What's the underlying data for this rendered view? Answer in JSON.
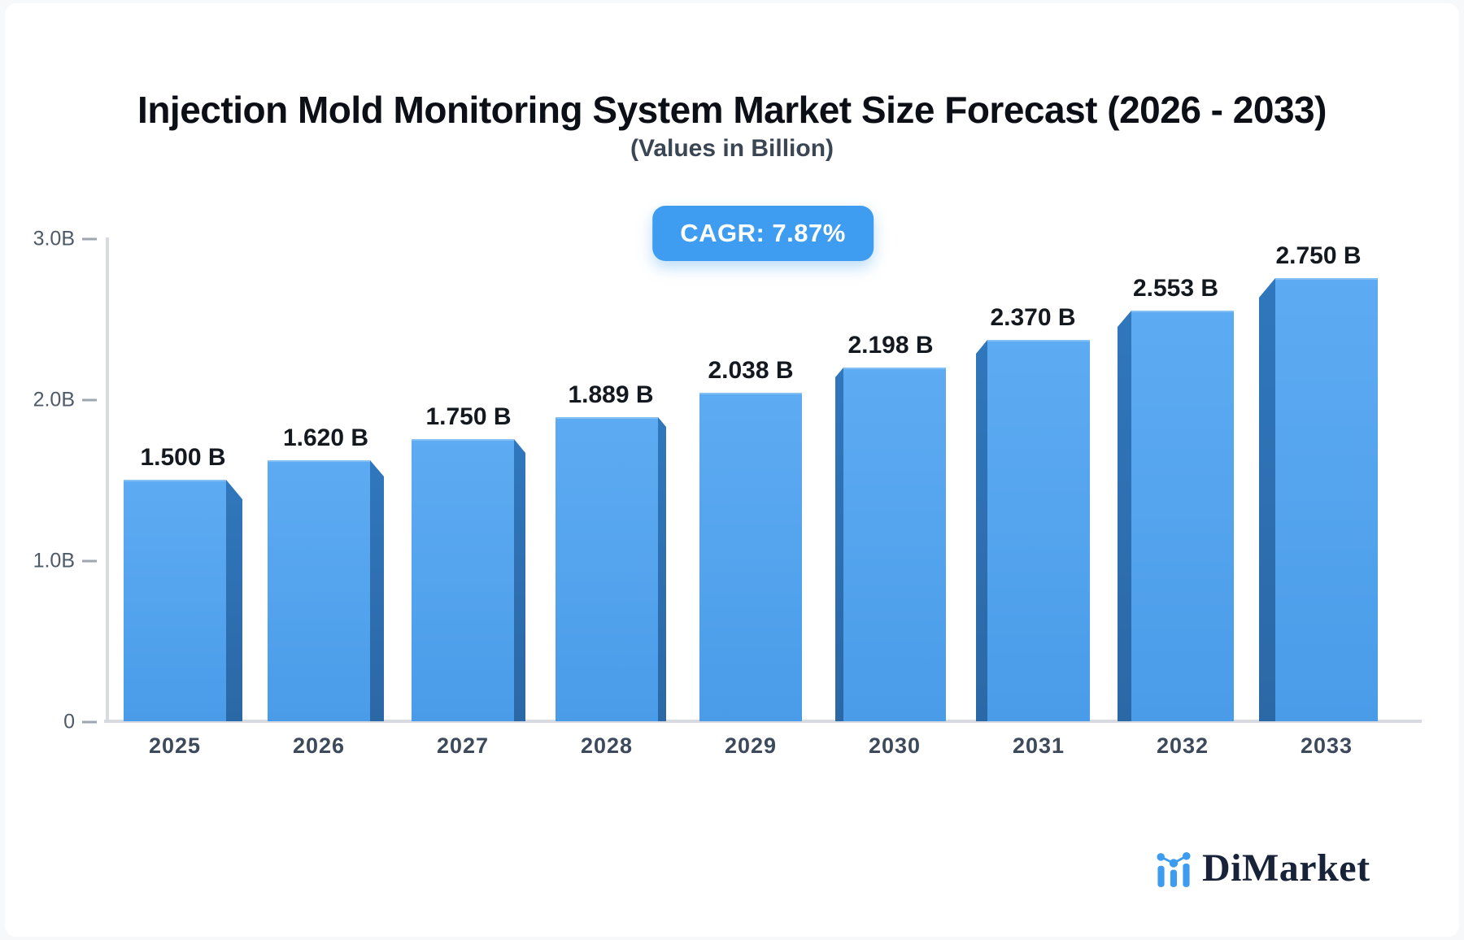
{
  "title": "Injection Mold Monitoring System Market Size Forecast (2026 - 2033)",
  "subtitle": "(Values in Billion)",
  "cagr_badge": "CAGR: 7.87%",
  "logo": {
    "text": "DiMarket",
    "icon": "mini-bar-chart-icon"
  },
  "colors": {
    "bar_face": "#4f9fea",
    "bar_side": "#2e70b4",
    "badge_bg": "#3f9df1",
    "axis_line": "#d7dade",
    "title_text": "#0c1016",
    "subtitle_text": "#3b4654",
    "logo_blue": "#3d9bf0",
    "logo_navy": "#182339"
  },
  "chart_data": {
    "type": "bar",
    "title": "Injection Mold Monitoring System Market Size Forecast (2026 - 2033)",
    "subtitle": "(Values in Billion)",
    "xlabel": "",
    "ylabel": "",
    "categories": [
      "2025",
      "2026",
      "2027",
      "2028",
      "2029",
      "2030",
      "2031",
      "2032",
      "2033"
    ],
    "values": [
      1.5,
      1.62,
      1.75,
      1.889,
      2.038,
      2.198,
      2.37,
      2.553,
      2.75
    ],
    "value_labels": [
      "1.500 B",
      "1.620 B",
      "1.750 B",
      "1.889 B",
      "2.038 B",
      "2.198 B",
      "2.370 B",
      "2.553 B",
      "2.750 B"
    ],
    "ylim": [
      0,
      3.0
    ],
    "y_ticks": [
      {
        "label": "0",
        "value": 0
      },
      {
        "label": "1.0B",
        "value": 1.0
      },
      {
        "label": "2.0B",
        "value": 2.0
      },
      {
        "label": "3.0B",
        "value": 3.0
      }
    ],
    "grid": false,
    "legend": "none",
    "style": "3d-extruded-bars-center-vanishing-point"
  }
}
